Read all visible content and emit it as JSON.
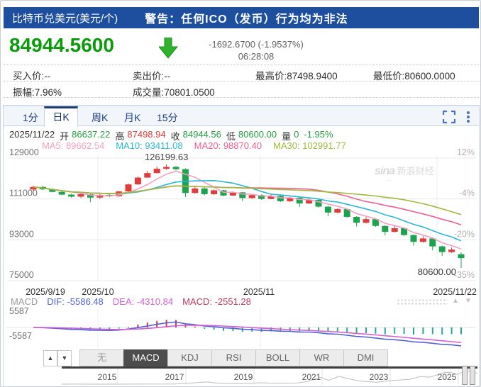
{
  "window": {
    "title": "比特币兑美元(美元/个)",
    "warning": "警告：任何ICO（发币）行为均为非法"
  },
  "quote": {
    "price": "84944.5600",
    "change": "-1692.6700 (-1.9537%)",
    "time": "06:28:08",
    "direction": "down"
  },
  "stats": {
    "row1": [
      {
        "label": "买入价:",
        "value": "--"
      },
      {
        "label": "卖出价:",
        "value": "--"
      },
      {
        "label": "最高价:",
        "value": "87498.9400"
      },
      {
        "label": "最低价:",
        "value": "80600.0000"
      }
    ],
    "row2": [
      {
        "label": "振幅:",
        "value": "7.96%"
      },
      {
        "label": "成交量:",
        "value": "70801.0500"
      }
    ]
  },
  "period_tabs": [
    {
      "label": "1分",
      "active": false
    },
    {
      "label": "日K",
      "active": true
    },
    {
      "label": "周K",
      "active": false
    },
    {
      "label": "月K",
      "active": false
    },
    {
      "label": "15分",
      "active": false
    }
  ],
  "ohlc": {
    "date": "2025/11/22",
    "items": [
      {
        "label": "开",
        "value": "86637.22",
        "color": "#22a044"
      },
      {
        "label": "高",
        "value": "87498.94",
        "color": "#e23b3b"
      },
      {
        "label": "收",
        "value": "84944.56",
        "color": "#22a044"
      },
      {
        "label": "低",
        "value": "80600.00",
        "color": "#22a044"
      },
      {
        "label": "量",
        "value": "0",
        "color": "#22a044"
      },
      {
        "label": "",
        "value": "-1.95%",
        "color": "#22a044"
      }
    ]
  },
  "ma_legend": [
    {
      "text": "MA5: 89662.54",
      "color": "#f2a0c0"
    },
    {
      "text": "MA10: 93411.08",
      "color": "#2ab6d9"
    },
    {
      "text": "MA20: 98870.40",
      "color": "#f15f8f"
    },
    {
      "text": "MA30: 102991.77",
      "color": "#9fba3a"
    }
  ],
  "macd_legend": {
    "name": "MACD",
    "name_color": "#9a9a9a",
    "items": [
      {
        "text": "DIF: -5586.48",
        "color": "#5161d6"
      },
      {
        "text": "DEA: -4310.84",
        "color": "#d55fd5"
      },
      {
        "text": "MACD: -2551.28",
        "color": "#c2385a"
      }
    ]
  },
  "indicator_tabs": [
    {
      "label": "无",
      "active": false
    },
    {
      "label": "MACD",
      "active": true
    },
    {
      "label": "KDJ",
      "active": false
    },
    {
      "label": "RSI",
      "active": false
    },
    {
      "label": "BOLL",
      "active": false
    },
    {
      "label": "WR",
      "active": false
    },
    {
      "label": "DMI",
      "active": false
    }
  ],
  "timeline": {
    "years": [
      "2015",
      "2017",
      "2019",
      "2021",
      "2023",
      "2025"
    ]
  },
  "watermark": {
    "logo": "sina",
    "text": "新浪财经",
    "sub": "· · — · ·"
  },
  "icons": {
    "up_triangle": "▲",
    "down_triangle": "▼"
  },
  "colors": {
    "header_bg": "#1e4f9e",
    "quote_green": "#0a9b0a",
    "candle_up": "#e23b3b",
    "candle_down": "#1ca34d",
    "grid": "#e8e8e8",
    "axis_text": "#707070",
    "dif_line": "#5161d6",
    "dea_line": "#d55fd5",
    "hist_pos": "#cc3b3b",
    "hist_neg": "#29a79a"
  },
  "chart_data": [
    {
      "type": "candlestick",
      "x_axis_labels": [
        "2025/9/19",
        "2025/10",
        "2025/11",
        "2025/11/22"
      ],
      "y_axis_left": [
        129000,
        111000,
        93000,
        75000
      ],
      "y_axis_right": [
        "12%",
        "-4%",
        "-20%",
        "-35%"
      ],
      "annotations": {
        "high": "126199.63",
        "low": "80600.00"
      },
      "ma_periods": [
        5,
        10,
        20,
        30
      ],
      "ma_colors": [
        "#f2a0c0",
        "#2ab6d9",
        "#f15f8f",
        "#9fba3a"
      ],
      "up_color": "#e23b3b",
      "down_color": "#1ca34d",
      "candles": [
        [
          115200,
          116900,
          114400,
          116300
        ],
        [
          116300,
          116800,
          114900,
          115200
        ],
        [
          115200,
          115600,
          113900,
          114100
        ],
        [
          114100,
          114500,
          112600,
          112900
        ],
        [
          112900,
          113400,
          111600,
          112000
        ],
        [
          112000,
          113500,
          111500,
          113100
        ],
        [
          113100,
          113600,
          109600,
          111600
        ],
        [
          111600,
          113200,
          111000,
          112800
        ],
        [
          112800,
          113300,
          111700,
          112200
        ],
        [
          112200,
          114600,
          112000,
          114300
        ],
        [
          114300,
          117800,
          114100,
          117400
        ],
        [
          117400,
          120900,
          117200,
          120400
        ],
        [
          120400,
          123400,
          120200,
          122400
        ],
        [
          122400,
          125300,
          122200,
          124300
        ],
        [
          124300,
          126199,
          123800,
          125100
        ],
        [
          125100,
          125600,
          123600,
          124100
        ],
        [
          124100,
          124500,
          111800,
          113600
        ],
        [
          113600,
          116600,
          113300,
          115600
        ],
        [
          115600,
          116000,
          112600,
          113100
        ],
        [
          113100,
          115200,
          112800,
          114800
        ],
        [
          114800,
          115100,
          112100,
          112500
        ],
        [
          112500,
          114200,
          112200,
          113900
        ],
        [
          113900,
          114100,
          110100,
          111400
        ],
        [
          111400,
          113100,
          111000,
          112700
        ],
        [
          112700,
          113000,
          110600,
          111000
        ],
        [
          111000,
          113100,
          110800,
          112300
        ],
        [
          112300,
          112600,
          109700,
          110000
        ],
        [
          110000,
          111900,
          109700,
          111500
        ],
        [
          111500,
          111800,
          107400,
          109000
        ],
        [
          109000,
          111600,
          108700,
          110600
        ],
        [
          110600,
          110900,
          107200,
          107600
        ],
        [
          107600,
          108000,
          103400,
          105000
        ],
        [
          105000,
          106900,
          104600,
          106500
        ],
        [
          106500,
          106800,
          102700,
          103100
        ],
        [
          103100,
          103400,
          98900,
          100500
        ],
        [
          100500,
          103100,
          100200,
          102100
        ],
        [
          102100,
          102400,
          98700,
          99100
        ],
        [
          99100,
          99400,
          94900,
          96500
        ],
        [
          96500,
          99600,
          96200,
          98100
        ],
        [
          98100,
          98400,
          94700,
          95100
        ],
        [
          95100,
          95400,
          90400,
          92100
        ],
        [
          92100,
          94600,
          91800,
          93600
        ],
        [
          93600,
          93900,
          88400,
          90100
        ],
        [
          90100,
          90400,
          85900,
          87600
        ],
        [
          87600,
          89600,
          87200,
          88700
        ],
        [
          86637,
          87499,
          80600,
          84945
        ]
      ]
    },
    {
      "type": "macd",
      "y_axis": [
        "5587",
        "-5587"
      ],
      "dif": -5586.48,
      "dea": -4310.84,
      "macd": -2551.28,
      "derived_from": "candles"
    },
    {
      "type": "line",
      "name": "history-navigator",
      "years": [
        "2015",
        "2017",
        "2019",
        "2021",
        "2023",
        "2025"
      ],
      "points": [
        [
          0,
          0.999
        ],
        [
          0.028,
          0.993
        ],
        [
          0.11,
          0.998
        ],
        [
          0.191,
          0.995
        ],
        [
          0.272,
          0.992
        ],
        [
          0.35,
          0.851
        ],
        [
          0.378,
          0.945
        ],
        [
          0.427,
          0.973
        ],
        [
          0.476,
          0.906
        ],
        [
          0.516,
          0.945
        ],
        [
          0.565,
          0.93
        ],
        [
          0.594,
          0.804
        ],
        [
          0.622,
          0.53
        ],
        [
          0.642,
          0.742
        ],
        [
          0.667,
          0.476
        ],
        [
          0.711,
          0.765
        ],
        [
          0.756,
          0.875
        ],
        [
          0.785,
          0.781
        ],
        [
          0.838,
          0.671
        ],
        [
          0.862,
          0.491
        ],
        [
          0.886,
          0.53
        ],
        [
          0.919,
          0.233
        ],
        [
          0.935,
          0.202
        ],
        [
          0.951,
          0.343
        ],
        [
          0.968,
          0.155
        ],
        [
          0.988,
          0.1
        ],
        [
          1,
          0.296
        ]
      ]
    }
  ]
}
